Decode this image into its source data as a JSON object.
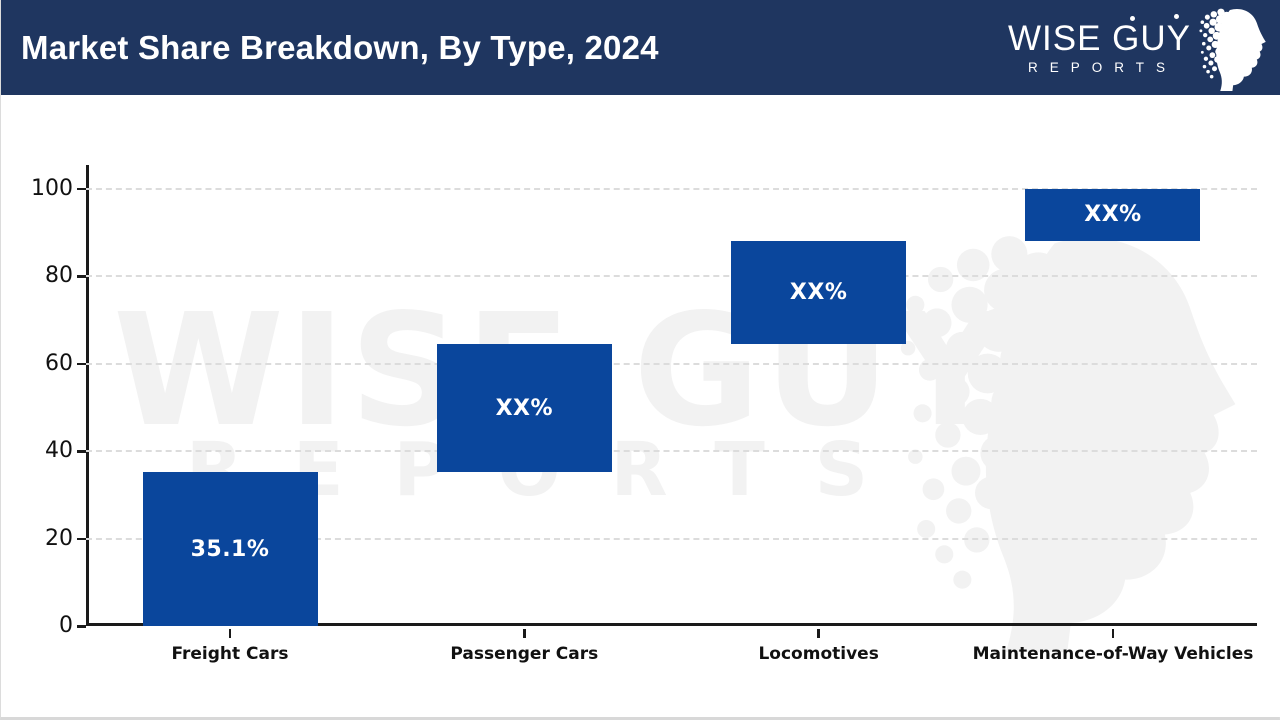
{
  "header": {
    "title": "Market Share Breakdown, By Type, 2024",
    "logo": {
      "wordmark": "WISE GUY",
      "subtext": "REPORTS"
    }
  },
  "watermark": {
    "wordmark": "WISE GUY",
    "subtext": "REPORTS"
  },
  "chart_data": {
    "type": "bar",
    "subtype": "stacked-waterfall",
    "title": "Market Share Breakdown, By Type, 2024",
    "categories": [
      "Freight Cars",
      "Passenger Cars",
      "Locomotives",
      "Maintenance-of-Way Vehicles"
    ],
    "segments": [
      {
        "category": "Freight Cars",
        "start": 0,
        "end": 35.1,
        "value": 35.1,
        "label": "35.1%"
      },
      {
        "category": "Passenger Cars",
        "start": 35.1,
        "end": 64.5,
        "value": 29.4,
        "label": "XX%"
      },
      {
        "category": "Locomotives",
        "start": 64.5,
        "end": 87.9,
        "value": 23.4,
        "label": "XX%"
      },
      {
        "category": "Maintenance-of-Way Vehicles",
        "start": 87.9,
        "end": 100,
        "value": 12.1,
        "label": "XX%"
      }
    ],
    "ylim": [
      0,
      100
    ],
    "yticks": [
      0,
      20,
      40,
      60,
      80,
      100
    ],
    "xlabel": "",
    "ylabel": "",
    "grid": true,
    "grid_style": "dashed",
    "legend": false,
    "bar_color": "#0A469C",
    "label_color": "#ffffff"
  },
  "colors": {
    "header_bg": "#1F3660",
    "header_text": "#ffffff",
    "bar": "#0A469C",
    "grid": "#dcdcdc",
    "axis": "#1a1a1a",
    "tick_label": "#111111",
    "watermark": "#f2f2f2",
    "page_bg": "#ffffff",
    "border": "#d8d8d8"
  }
}
